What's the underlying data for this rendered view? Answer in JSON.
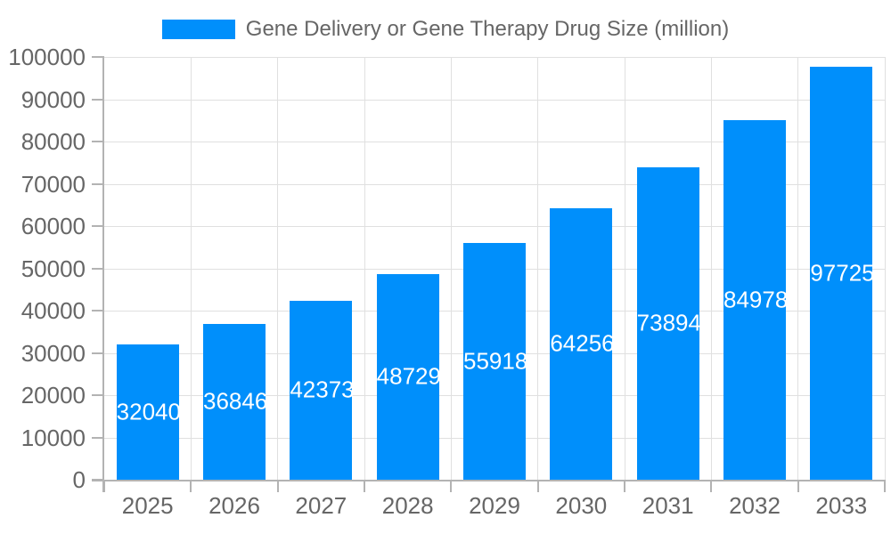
{
  "legend": {
    "label": "Gene Delivery or Gene Therapy Drug Size (million)"
  },
  "colors": {
    "bar": "#008FFB",
    "grid": "#e0e0e0",
    "axis": "#b3b3b3",
    "tick_label": "#666666",
    "legend_text": "#666666",
    "bar_label": "#ffffff",
    "background": "#ffffff"
  },
  "chart_data": {
    "type": "bar",
    "title": "",
    "series_name": "Gene Delivery or Gene Therapy Drug Size (million)",
    "categories": [
      "2025",
      "2026",
      "2027",
      "2028",
      "2029",
      "2030",
      "2031",
      "2032",
      "2033"
    ],
    "values": [
      32040,
      36846,
      42373,
      48729,
      55918,
      64256,
      73894,
      84978,
      97725
    ],
    "xlabel": "",
    "ylabel": "",
    "ylim": [
      0,
      100000
    ],
    "ytick_step": 10000,
    "ytick_labels": [
      "0",
      "10000",
      "20000",
      "30000",
      "40000",
      "50000",
      "60000",
      "70000",
      "80000",
      "90000",
      "100000"
    ],
    "grid": true,
    "legend_position": "top",
    "data_labels": "inside-center"
  }
}
